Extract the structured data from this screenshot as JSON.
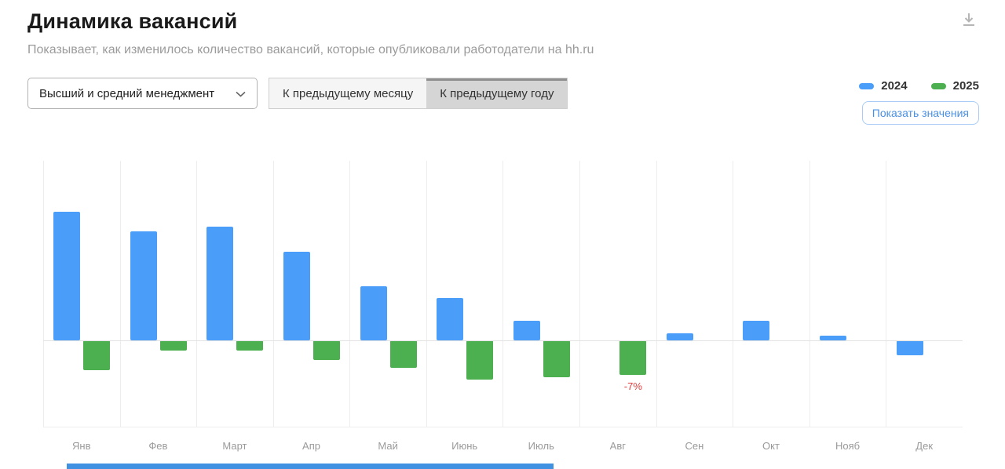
{
  "header": {
    "title": "Динамика вакансий",
    "subtitle": "Показывает, как изменилось количество вакансий, которые опубликовали работодатели на hh.ru"
  },
  "controls": {
    "category_select": {
      "value": "Высший и средний менеджмент"
    },
    "mode_tabs": [
      {
        "label": "К предыдущему месяцу",
        "active": false
      },
      {
        "label": "К предыдущему году",
        "active": true
      }
    ],
    "show_values_button": "Показать значения"
  },
  "legend": [
    {
      "label": "2024",
      "color": "#4a9df8"
    },
    {
      "label": "2025",
      "color": "#4caf50"
    }
  ],
  "chart_data": {
    "type": "bar",
    "title": "Динамика вакансий",
    "unit": "%",
    "grid": "vertical",
    "legend_position": "top-right",
    "categories": [
      "Янв",
      "Фев",
      "Март",
      "Апр",
      "Май",
      "Июнь",
      "Июль",
      "Авг",
      "Сен",
      "Окт",
      "Нояб",
      "Дек"
    ],
    "series": [
      {
        "name": "2024",
        "color": "#4a9df8",
        "values": [
          26,
          22,
          23,
          18,
          11,
          8.5,
          4,
          null,
          1.5,
          4,
          1,
          -3
        ]
      },
      {
        "name": "2025",
        "color": "#4caf50",
        "values": [
          -6,
          -2,
          -2,
          -4,
          -5.5,
          -8,
          -7.5,
          -7,
          null,
          null,
          null,
          null
        ]
      }
    ],
    "annotations": [
      {
        "category": "Авг",
        "series": "2025",
        "text": "-7%",
        "color": "#e23b3b"
      }
    ]
  }
}
